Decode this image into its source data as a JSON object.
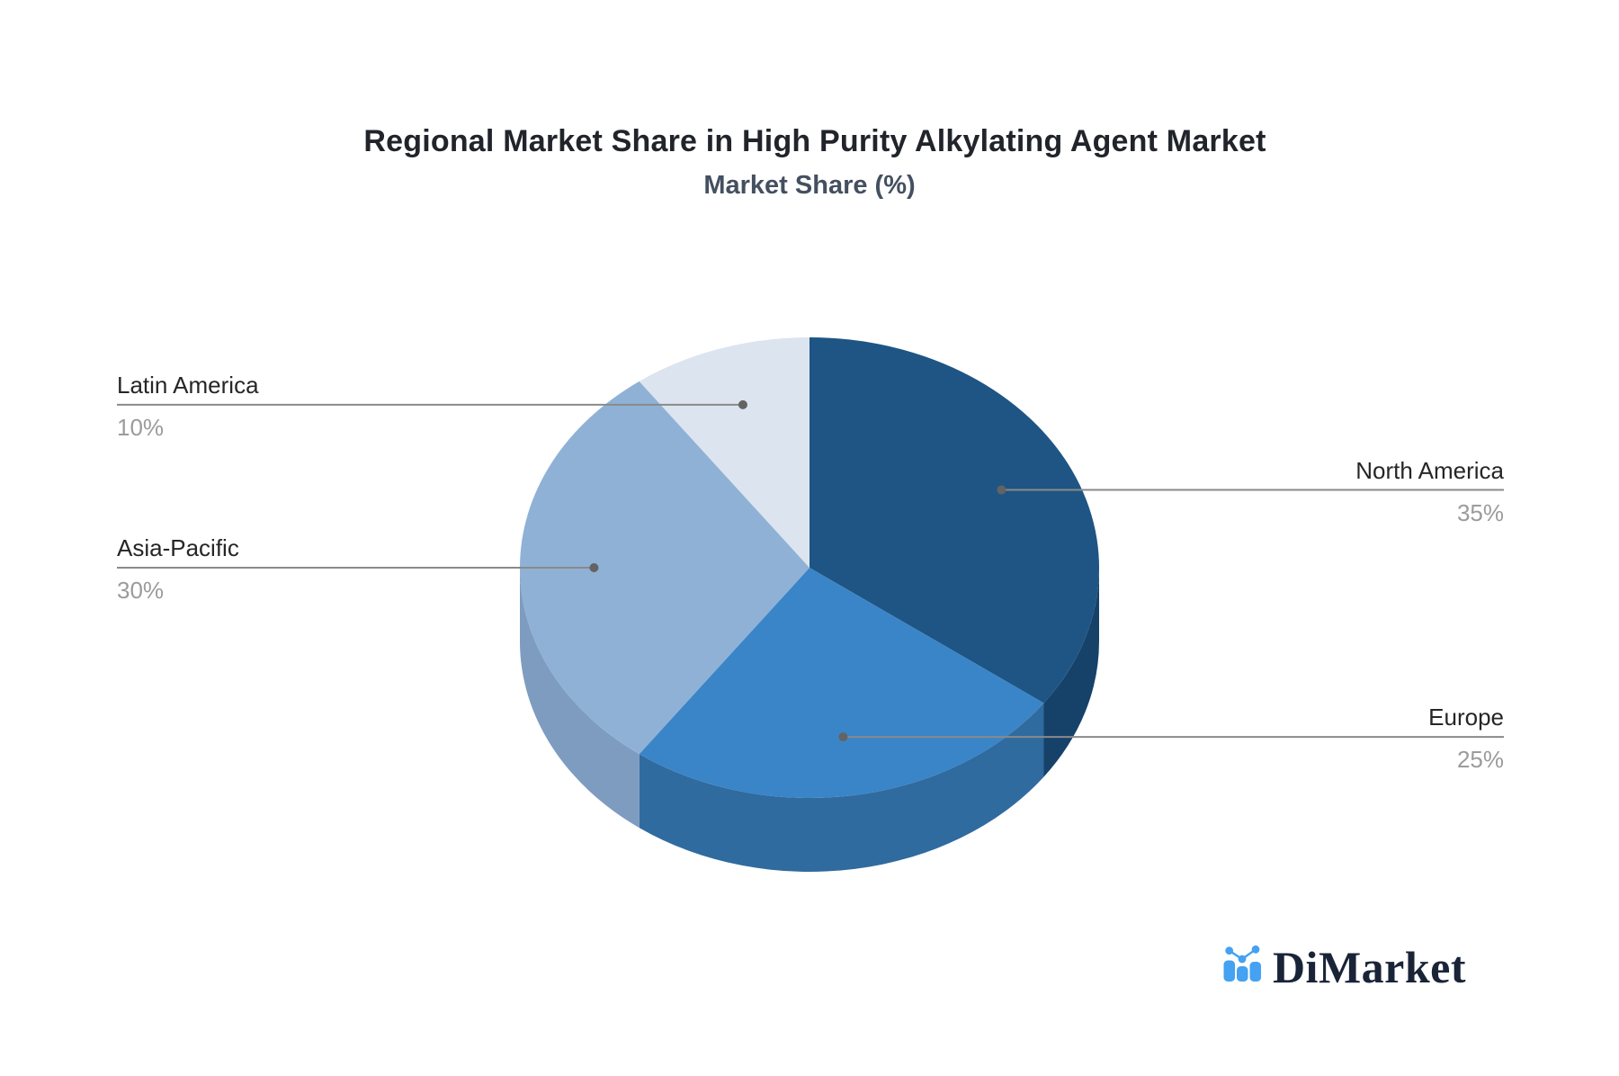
{
  "title": "Regional Market Share in High Purity Alkylating Agent Market",
  "subtitle": "Market Share (%)",
  "chart_data": {
    "type": "pie",
    "title": "Regional Market Share in High Purity Alkylating Agent Market",
    "subtitle": "Market Share (%)",
    "unit": "%",
    "effect": "3d",
    "start_angle_deg": 0,
    "direction": "clockwise",
    "slices": [
      {
        "name": "North America",
        "value": 35,
        "pct_label": "35%",
        "label_side": "right",
        "color": "#1E5584",
        "side_color": "#16426A"
      },
      {
        "name": "Europe",
        "value": 25,
        "pct_label": "25%",
        "label_side": "right",
        "color": "#3A85C7",
        "side_color": "#2F6B9F"
      },
      {
        "name": "Asia-Pacific",
        "value": 30,
        "pct_label": "30%",
        "label_side": "left",
        "color": "#8FB1D5",
        "side_color": "#7E9CC0"
      },
      {
        "name": "Latin America",
        "value": 10,
        "pct_label": "10%",
        "label_side": "left",
        "color": "#DCE4EF",
        "side_color": "#C9D4E4"
      }
    ]
  },
  "logo": {
    "text": "DiMarket",
    "icon": "bar-line-chart-icon",
    "icon_color": "#45A1F1",
    "text_color": "#1A2438"
  },
  "style": {
    "background": "#FFFFFF",
    "title_color": "#21242B",
    "subtitle_color": "#445060",
    "label_color": "#262626",
    "pct_color": "#9B9B9B",
    "leader_line_color": "#8A8A8A",
    "dot_color": "#636363"
  }
}
